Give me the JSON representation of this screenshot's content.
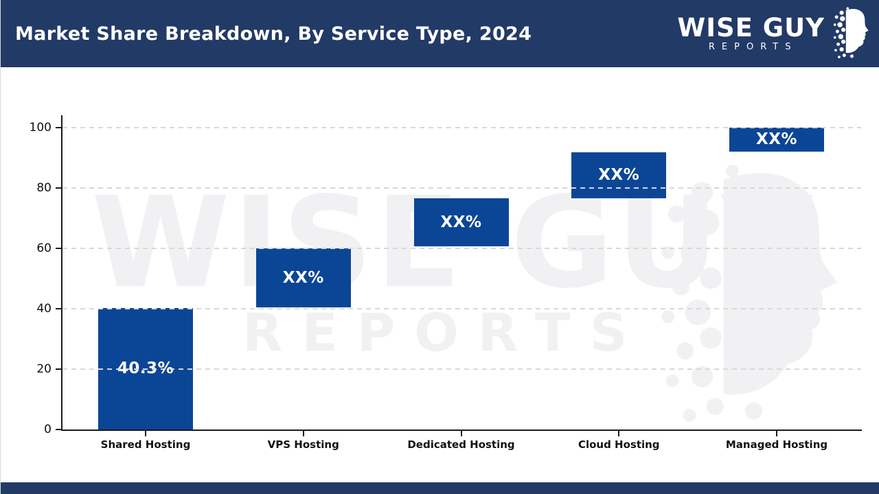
{
  "header": {
    "title": "Market Share Breakdown, By Service Type, 2024",
    "logo": {
      "line1": "WISE GUY",
      "line2": "REPORTS"
    }
  },
  "watermark": {
    "line1": "WISE GUY",
    "line2": "REPORTS"
  },
  "chart_data": {
    "type": "bar",
    "subtype": "waterfall",
    "title": "Market Share Breakdown, By Service Type, 2024",
    "categories": [
      "Shared Hosting",
      "VPS Hosting",
      "Dedicated Hosting",
      "Cloud Hosting",
      "Managed Hosting"
    ],
    "segments": [
      {
        "start": 0,
        "end": 40.3
      },
      {
        "start": 40.5,
        "end": 60.0
      },
      {
        "start": 60.6,
        "end": 76.6
      },
      {
        "start": 76.7,
        "end": 91.9
      },
      {
        "start": 92.0,
        "end": 100.1
      }
    ],
    "bar_labels": [
      "40.3%",
      "XX%",
      "XX%",
      "XX%",
      "XX%"
    ],
    "yticks": [
      0,
      20,
      40,
      60,
      80,
      100
    ],
    "ylim": [
      0,
      104
    ],
    "xlabel": "",
    "ylabel": "",
    "grid": "horizontal-dashed",
    "legend": "none",
    "colors": {
      "bar": "#0b4696",
      "band": "#223a66",
      "grid": "#d8d8d8",
      "axis": "#1a1a1a",
      "watermark": "#f1f1f3"
    }
  }
}
